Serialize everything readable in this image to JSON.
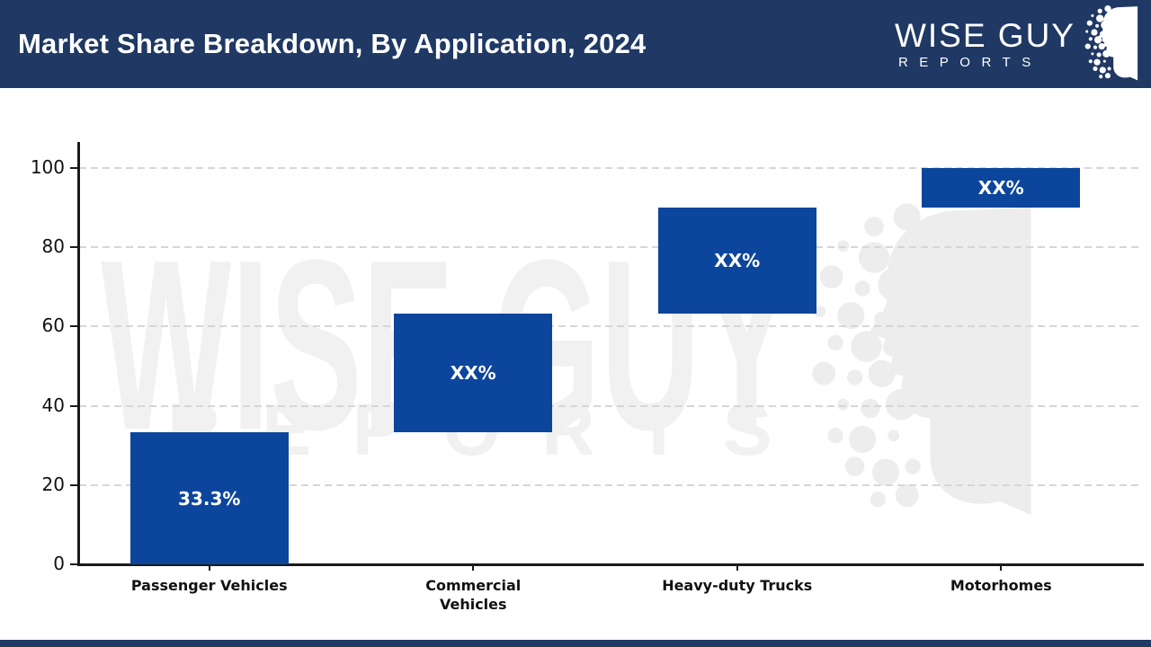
{
  "colors": {
    "navy": "#1f3864",
    "bar_blue": "#0c459c",
    "watermark_gray": "#f1f1f1",
    "axis_black": "#1a1a1a",
    "gridline_gray": "#d6d6d6",
    "bar_label_white": "#ffffff"
  },
  "header": {
    "title": "Market Share Breakdown, By Application, 2024",
    "logo": {
      "line1": "WISE GUY",
      "line2": "REPORTS",
      "icon": "wiseguy-dotted-face"
    }
  },
  "watermark": {
    "line1": "WISE GUY",
    "line2": "REPORTS",
    "icon": "wiseguy-dotted-face"
  },
  "chart_data": {
    "type": "bar",
    "subtype": "floating-waterfall",
    "title": "Market Share Breakdown, By Application, 2024",
    "categories": [
      [
        "Passenger Vehicles"
      ],
      [
        "Commercial",
        "Vehicles"
      ],
      [
        "Heavy-duty Trucks"
      ],
      [
        "Motorhomes"
      ]
    ],
    "bars": [
      {
        "category": "Passenger Vehicles",
        "start": 0,
        "end": 33.3,
        "label": "33.3%"
      },
      {
        "category": "Commercial Vehicles",
        "start": 33.3,
        "end": 63.3,
        "label": "XX%"
      },
      {
        "category": "Heavy-duty Trucks",
        "start": 63.3,
        "end": 90,
        "label": "XX%"
      },
      {
        "category": "Motorhomes",
        "start": 90,
        "end": 100,
        "label": "XX%"
      }
    ],
    "xlabel": "",
    "ylabel": "",
    "ylim": [
      0,
      100
    ],
    "yticks": [
      0,
      20,
      40,
      60,
      80,
      100
    ],
    "grid": "horizontal-dashed",
    "legend": "none"
  }
}
